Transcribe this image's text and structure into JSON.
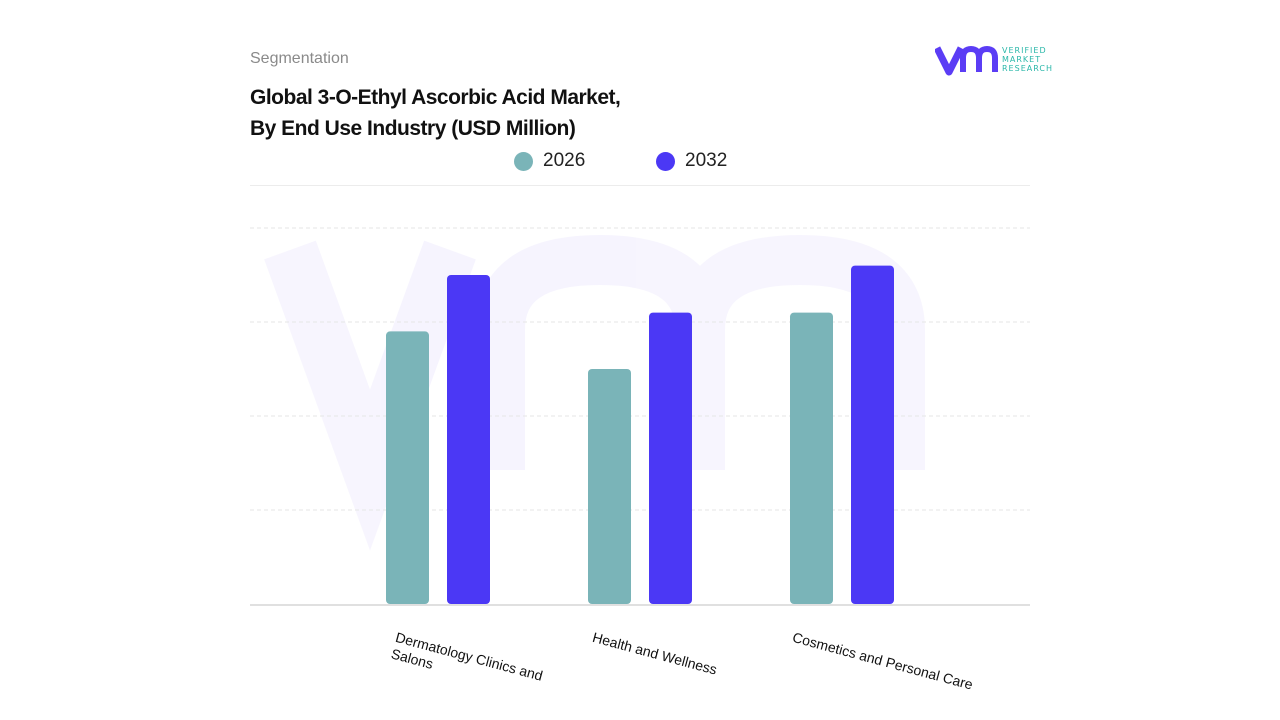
{
  "header": {
    "segment_label": "Segmentation",
    "title_line1": "Global 3-O-Ethyl Ascorbic Acid Market,",
    "title_line2": "By End Use Industry (USD Million)"
  },
  "logo": {
    "text_line1": "VERIFIED",
    "text_line2": "MARKET",
    "text_line3": "RESEARCH",
    "mark": "VMR",
    "colors": {
      "mark": "#5b3df5",
      "text": "#2ab7a9"
    }
  },
  "chart_data": {
    "type": "bar",
    "title": "Global 3-O-Ethyl Ascorbic Acid Market, By End Use Industry (USD Million)",
    "categories": [
      "Dermatology Clinics and Salons",
      "Health and Wellness",
      "Cosmetics and Personal Care"
    ],
    "series": [
      {
        "name": "2026",
        "values": [
          2.9,
          2.5,
          3.1
        ],
        "color": "#7ab4b8"
      },
      {
        "name": "2032",
        "values": [
          3.5,
          3.1,
          3.6
        ],
        "color": "#4b38f5"
      }
    ],
    "ylim": [
      0,
      4
    ],
    "y_tick_labels_shown": false,
    "grid": true,
    "legend": "top-center",
    "xlabel": "",
    "ylabel": ""
  }
}
